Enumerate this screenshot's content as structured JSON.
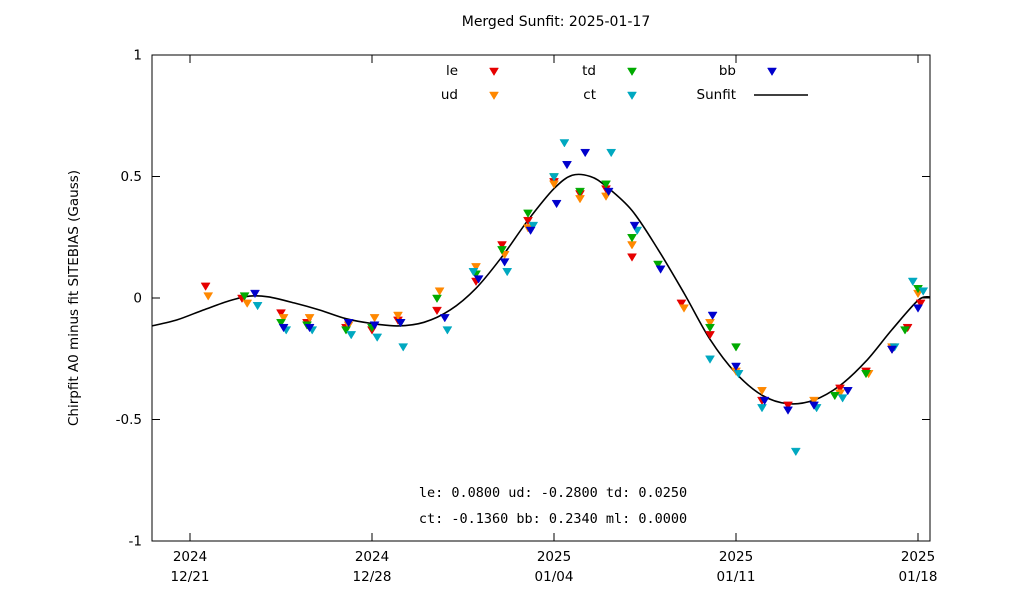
{
  "chart": {
    "title": "Merged Sunfit: 2025-01-17",
    "ylabel": "Chirpfit A0 minus fit SITEBIAS (Gauss)"
  },
  "chart_data": {
    "type": "scatter",
    "title": "Merged Sunfit: 2025-01-17",
    "xlabel": "",
    "ylabel": "Chirpfit A0 minus fit SITEBIAS (Gauss)",
    "ylim": [
      -1,
      1
    ],
    "x_unit": "days since 2024-12-21",
    "grid": false,
    "legend_position": "top-center",
    "y_ticks": [
      {
        "value": 1,
        "label": "1"
      },
      {
        "value": 0.5,
        "label": "0.5"
      },
      {
        "value": 0,
        "label": "0"
      },
      {
        "value": -0.5,
        "label": "-0.5"
      },
      {
        "value": -1,
        "label": "-1"
      }
    ],
    "x_ticks": [
      {
        "day": 0,
        "year": "2024",
        "date": "12/21"
      },
      {
        "day": 7,
        "year": "2024",
        "date": "12/28"
      },
      {
        "day": 14,
        "year": "2025",
        "date": "01/04"
      },
      {
        "day": 21,
        "year": "2025",
        "date": "01/11"
      },
      {
        "day": 28,
        "year": "2025",
        "date": "01/18"
      }
    ],
    "colors": {
      "le": "#e60000",
      "ud": "#ff8800",
      "td": "#00aa00",
      "ct": "#00a8c0",
      "bb": "#0000cc",
      "Sunfit": "#000000"
    },
    "legend_entries": [
      {
        "key": "le",
        "col": 0,
        "row": 0,
        "marker": "triangle-down"
      },
      {
        "key": "ud",
        "col": 0,
        "row": 1,
        "marker": "triangle-down"
      },
      {
        "key": "td",
        "col": 1,
        "row": 0,
        "marker": "triangle-down"
      },
      {
        "key": "ct",
        "col": 1,
        "row": 1,
        "marker": "triangle-down"
      },
      {
        "key": "bb",
        "col": 2,
        "row": 0,
        "marker": "triangle-down"
      },
      {
        "key": "Sunfit",
        "col": 2,
        "row": 1,
        "marker": "line"
      }
    ],
    "series": [
      {
        "name": "le",
        "marker": "triangle-down",
        "points": [
          [
            0.6,
            0.05
          ],
          [
            2.0,
            0.0
          ],
          [
            3.5,
            -0.06
          ],
          [
            4.5,
            -0.1
          ],
          [
            6.0,
            -0.12
          ],
          [
            7.0,
            -0.13
          ],
          [
            8.0,
            -0.09
          ],
          [
            9.5,
            -0.05
          ],
          [
            11.0,
            0.07
          ],
          [
            12.0,
            0.22
          ],
          [
            13.0,
            0.32
          ],
          [
            14.0,
            0.48
          ],
          [
            15.0,
            0.43
          ],
          [
            16.0,
            0.45
          ],
          [
            17.0,
            0.17
          ],
          [
            18.9,
            -0.02
          ],
          [
            20.0,
            -0.15
          ],
          [
            22.0,
            -0.42
          ],
          [
            23.0,
            -0.44
          ],
          [
            25.0,
            -0.37
          ],
          [
            26.0,
            -0.3
          ],
          [
            27.0,
            -0.21
          ],
          [
            27.6,
            -0.12
          ],
          [
            28.1,
            -0.02
          ]
        ]
      },
      {
        "name": "ud",
        "marker": "triangle-down",
        "points": [
          [
            0.7,
            0.01
          ],
          [
            2.2,
            -0.02
          ],
          [
            3.6,
            -0.08
          ],
          [
            4.6,
            -0.08
          ],
          [
            6.1,
            -0.11
          ],
          [
            7.1,
            -0.08
          ],
          [
            8.0,
            -0.07
          ],
          [
            9.6,
            0.03
          ],
          [
            11.0,
            0.13
          ],
          [
            12.1,
            0.18
          ],
          [
            13.0,
            0.29
          ],
          [
            14.0,
            0.47
          ],
          [
            15.0,
            0.41
          ],
          [
            16.0,
            0.42
          ],
          [
            17.0,
            0.22
          ],
          [
            19.0,
            -0.04
          ],
          [
            20.0,
            -0.1
          ],
          [
            21.0,
            -0.3
          ],
          [
            22.0,
            -0.38
          ],
          [
            24.0,
            -0.42
          ],
          [
            25.0,
            -0.39
          ],
          [
            26.1,
            -0.31
          ],
          [
            27.0,
            -0.2
          ],
          [
            28.0,
            0.02
          ]
        ]
      },
      {
        "name": "td",
        "marker": "triangle-down",
        "points": [
          [
            2.1,
            0.01
          ],
          [
            3.5,
            -0.1
          ],
          [
            4.5,
            -0.11
          ],
          [
            6.0,
            -0.13
          ],
          [
            7.0,
            -0.12
          ],
          [
            8.1,
            -0.1
          ],
          [
            9.5,
            0.0
          ],
          [
            11.0,
            0.1
          ],
          [
            12.0,
            0.2
          ],
          [
            13.0,
            0.35
          ],
          [
            14.0,
            0.5
          ],
          [
            15.0,
            0.44
          ],
          [
            16.0,
            0.47
          ],
          [
            17.0,
            0.25
          ],
          [
            18.0,
            0.14
          ],
          [
            20.0,
            -0.12
          ],
          [
            21.0,
            -0.2
          ],
          [
            24.8,
            -0.4
          ],
          [
            26.0,
            -0.31
          ],
          [
            27.5,
            -0.13
          ],
          [
            28.0,
            0.04
          ]
        ]
      },
      {
        "name": "ct",
        "marker": "triangle-down",
        "points": [
          [
            2.6,
            -0.03
          ],
          [
            3.7,
            -0.13
          ],
          [
            4.7,
            -0.13
          ],
          [
            6.2,
            -0.15
          ],
          [
            7.2,
            -0.16
          ],
          [
            8.2,
            -0.2
          ],
          [
            9.9,
            -0.13
          ],
          [
            10.9,
            0.11
          ],
          [
            12.2,
            0.11
          ],
          [
            13.2,
            0.3
          ],
          [
            14.0,
            0.5
          ],
          [
            14.4,
            0.64
          ],
          [
            16.2,
            0.6
          ],
          [
            17.2,
            0.28
          ],
          [
            20.0,
            -0.25
          ],
          [
            21.1,
            -0.31
          ],
          [
            22.0,
            -0.45
          ],
          [
            23.3,
            -0.63
          ],
          [
            24.1,
            -0.45
          ],
          [
            25.1,
            -0.41
          ],
          [
            27.1,
            -0.2
          ],
          [
            27.8,
            0.07
          ],
          [
            28.2,
            0.03
          ]
        ]
      },
      {
        "name": "bb",
        "marker": "triangle-down",
        "points": [
          [
            2.5,
            0.02
          ],
          [
            3.6,
            -0.12
          ],
          [
            4.6,
            -0.12
          ],
          [
            6.1,
            -0.1
          ],
          [
            7.1,
            -0.11
          ],
          [
            8.1,
            -0.1
          ],
          [
            9.8,
            -0.08
          ],
          [
            11.1,
            0.08
          ],
          [
            12.1,
            0.15
          ],
          [
            13.1,
            0.28
          ],
          [
            14.1,
            0.39
          ],
          [
            14.5,
            0.55
          ],
          [
            15.2,
            0.6
          ],
          [
            16.1,
            0.44
          ],
          [
            17.1,
            0.3
          ],
          [
            18.1,
            0.12
          ],
          [
            20.1,
            -0.07
          ],
          [
            21.0,
            -0.28
          ],
          [
            22.1,
            -0.42
          ],
          [
            23.0,
            -0.46
          ],
          [
            24.0,
            -0.44
          ],
          [
            25.3,
            -0.38
          ],
          [
            27.0,
            -0.21
          ],
          [
            28.0,
            -0.04
          ]
        ]
      },
      {
        "name": "Sunfit",
        "marker": "line",
        "points": [
          [
            -1.46,
            -0.115
          ],
          [
            -0.5,
            -0.09
          ],
          [
            0.5,
            -0.05
          ],
          [
            1.5,
            -0.012
          ],
          [
            2.3,
            0.008
          ],
          [
            3.0,
            0.005
          ],
          [
            4.0,
            -0.02
          ],
          [
            5.0,
            -0.05
          ],
          [
            6.0,
            -0.085
          ],
          [
            7.0,
            -0.105
          ],
          [
            8.0,
            -0.115
          ],
          [
            9.0,
            -0.1
          ],
          [
            10.0,
            -0.05
          ],
          [
            11.0,
            0.04
          ],
          [
            12.0,
            0.17
          ],
          [
            13.0,
            0.32
          ],
          [
            14.0,
            0.45
          ],
          [
            14.7,
            0.505
          ],
          [
            15.4,
            0.5
          ],
          [
            16.0,
            0.46
          ],
          [
            17.0,
            0.36
          ],
          [
            18.0,
            0.2
          ],
          [
            19.0,
            0.02
          ],
          [
            20.0,
            -0.17
          ],
          [
            21.0,
            -0.31
          ],
          [
            22.0,
            -0.4
          ],
          [
            23.0,
            -0.435
          ],
          [
            24.0,
            -0.42
          ],
          [
            25.0,
            -0.36
          ],
          [
            26.0,
            -0.26
          ],
          [
            27.0,
            -0.13
          ],
          [
            28.0,
            -0.01
          ],
          [
            28.46,
            0.005
          ]
        ]
      }
    ],
    "fit_values": {
      "le": 0.08,
      "ud": -0.28,
      "td": 0.025,
      "ct": -0.136,
      "bb": 0.234,
      "ml": 0.0
    },
    "annotation_lines": [
      "le:  0.0800   ud: -0.2800   td:  0.0250",
      "ct: -0.1360   bb:  0.2340   ml:  0.0000"
    ]
  }
}
